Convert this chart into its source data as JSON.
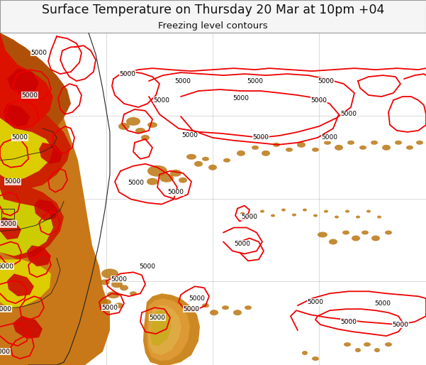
{
  "title": "Surface Temperature on Thursday 20 Mar at 10pm +04",
  "subtitle": "Freezing level contours",
  "title_fontsize": 12.5,
  "subtitle_fontsize": 9.5,
  "fig_width": 6.01,
  "fig_height": 5.14,
  "dpi": 100,
  "title_bar_color": "#f5f5f5",
  "title_text_color": "#111111",
  "ocean_color": "#c9cde8",
  "contour_color": "#ee0000",
  "border_color": "#999999",
  "map_border_color": "#bbbbbb",
  "grid_color": "#aaaaaa",
  "africa_base": "#c87818",
  "africa_brown_dark": "#b05008",
  "africa_red1": "#cc2200",
  "africa_red2": "#dd1100",
  "africa_red3": "#cc0000",
  "africa_yellow": "#cccc00",
  "africa_yellow2": "#ddcc00",
  "africa_orange": "#dd8800",
  "mada_base": "#cc8822",
  "mada_orange": "#dd9933",
  "mada_yellow": "#ddaa44",
  "island_color": "#bb7711",
  "small_dot_color": "#aa6611"
}
